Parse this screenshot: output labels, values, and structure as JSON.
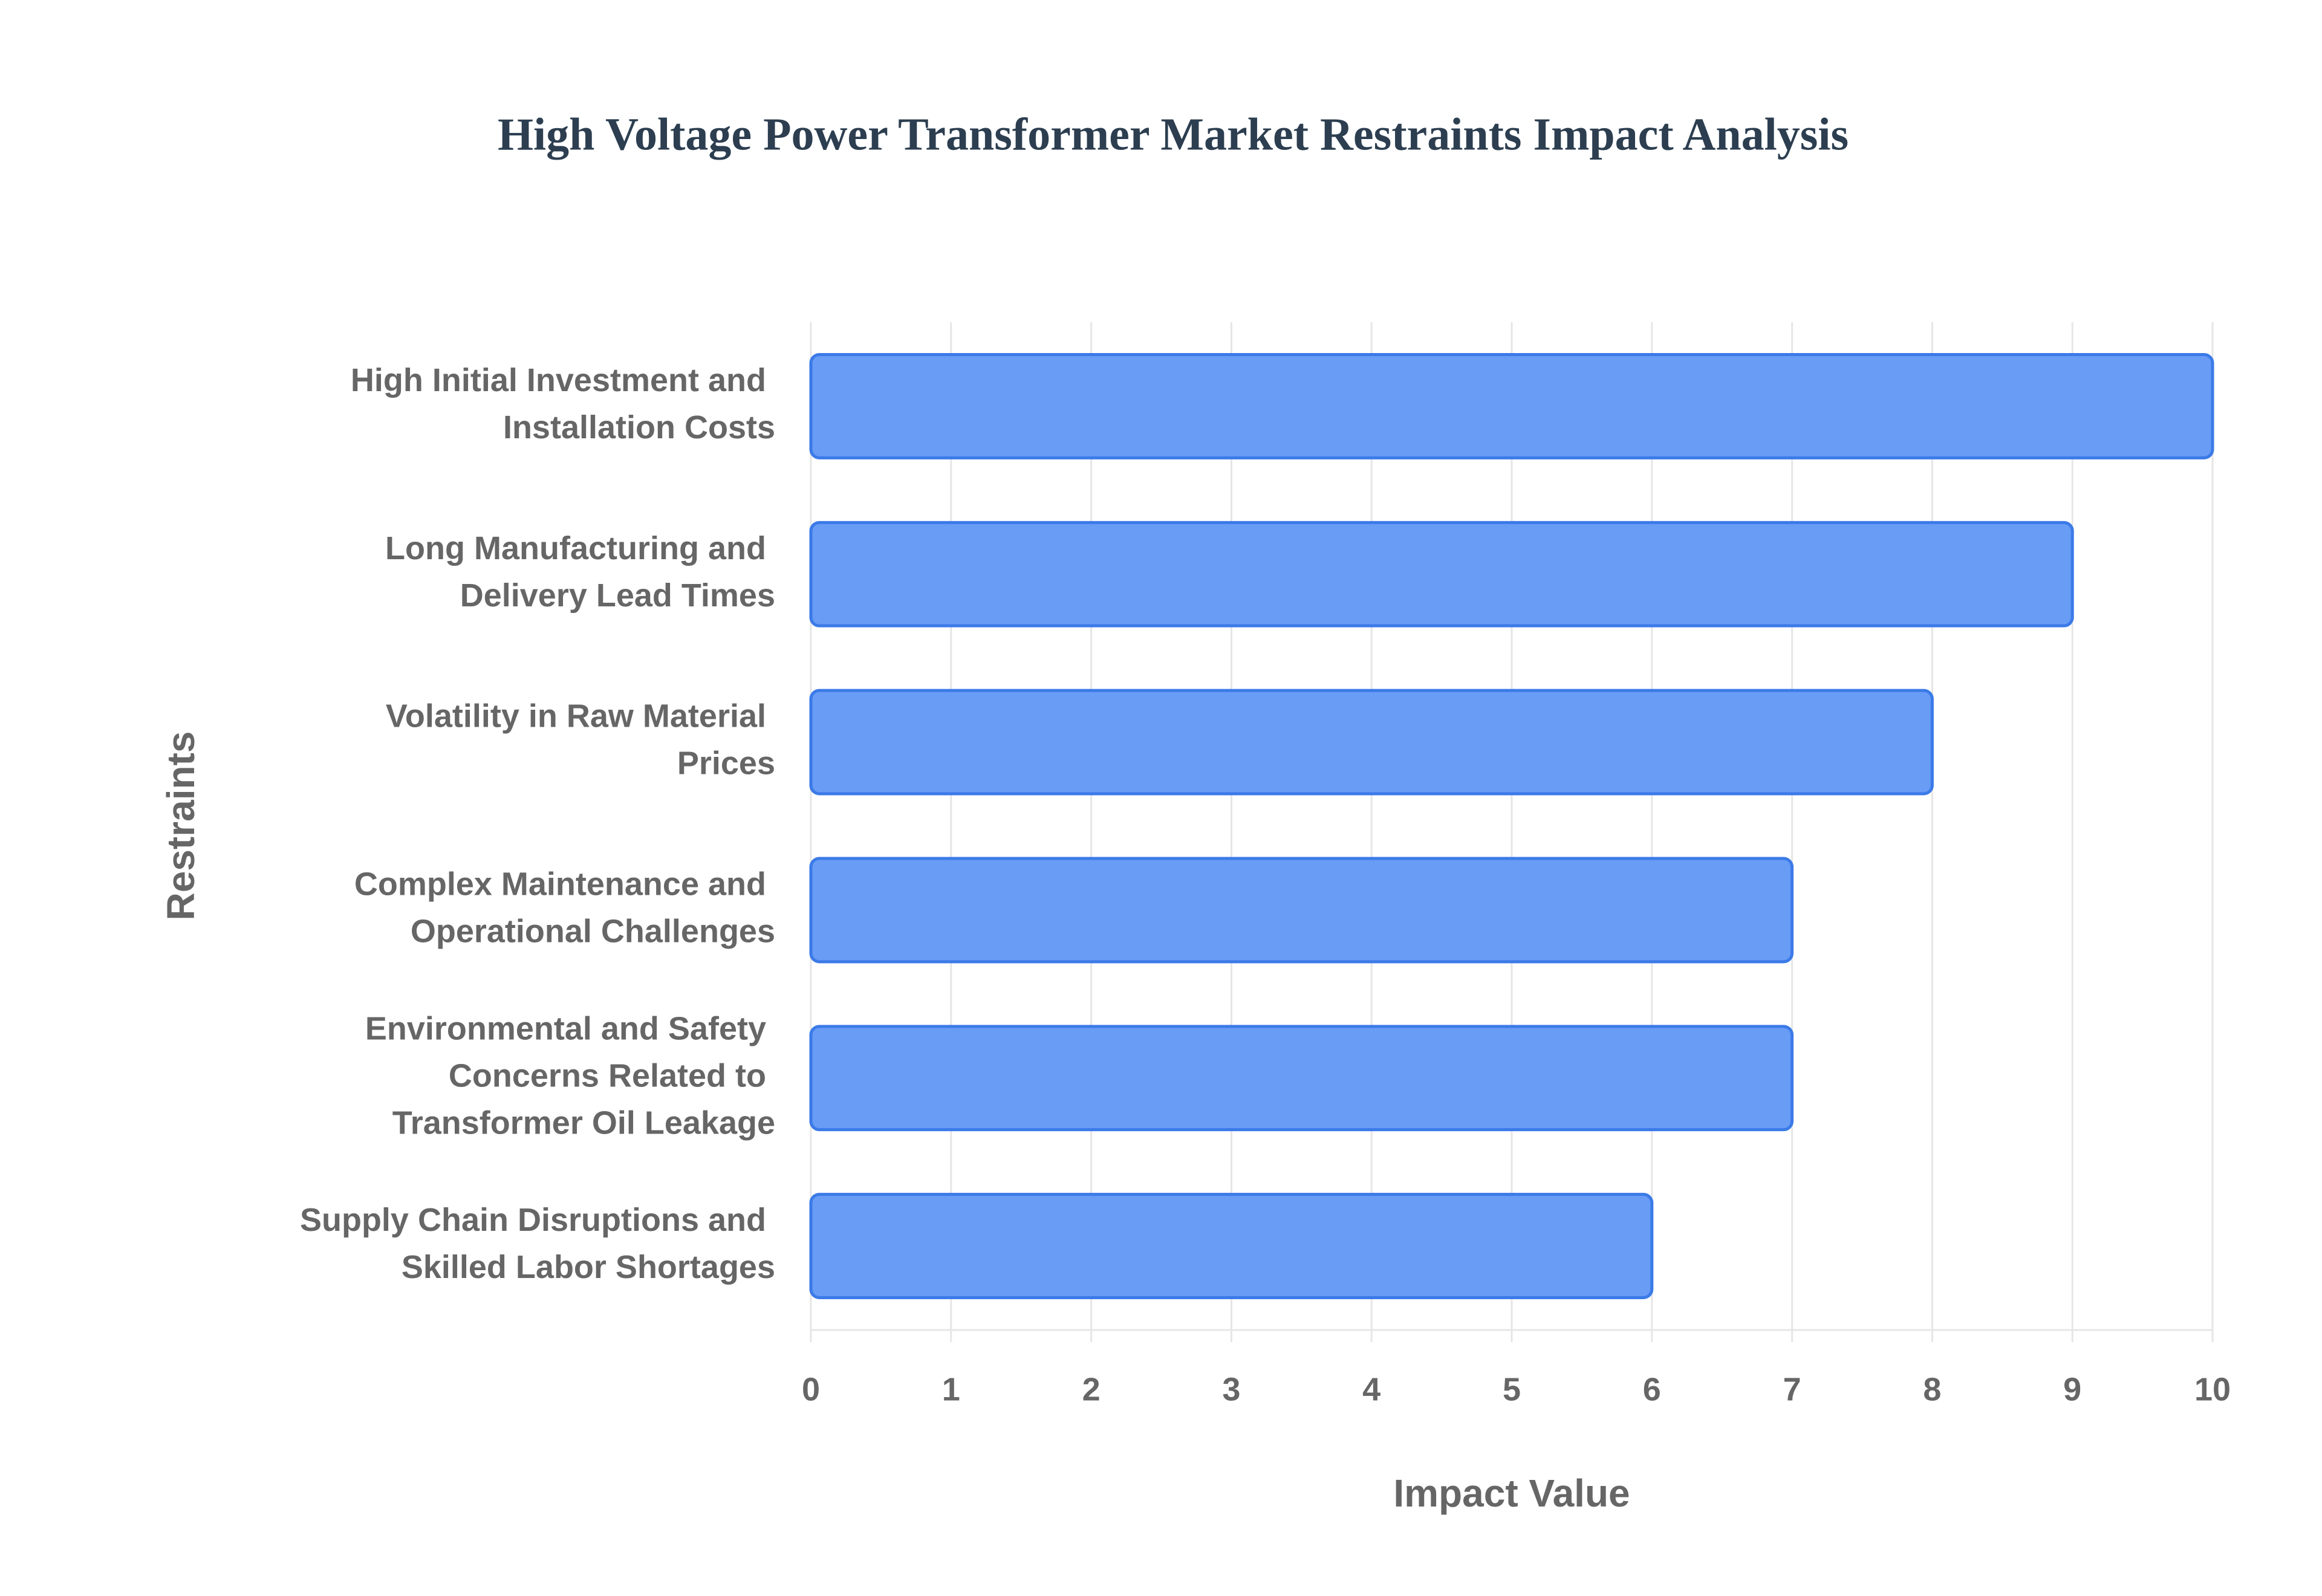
{
  "chart_data": {
    "type": "bar",
    "orientation": "horizontal",
    "title": "High Voltage Power Transformer Market Restraints Impact Analysis",
    "xlabel": "Impact Value",
    "ylabel": "Restraints",
    "categories": [
      "High Initial Investment and Installation Costs",
      "Long Manufacturing and Delivery Lead Times",
      "Volatility in Raw Material Prices",
      "Complex Maintenance and Operational Challenges",
      "Environmental and Safety Concerns Related to Transformer Oil Leakage",
      "Supply Chain Disruptions and Skilled Labor Shortages"
    ],
    "values": [
      10,
      9,
      8,
      7,
      7,
      6
    ],
    "color": "#6399f5",
    "xlim": [
      0,
      10
    ],
    "xticks": [
      0,
      1,
      2,
      3,
      4,
      5,
      6,
      7,
      8,
      9,
      10
    ],
    "grid": true
  }
}
